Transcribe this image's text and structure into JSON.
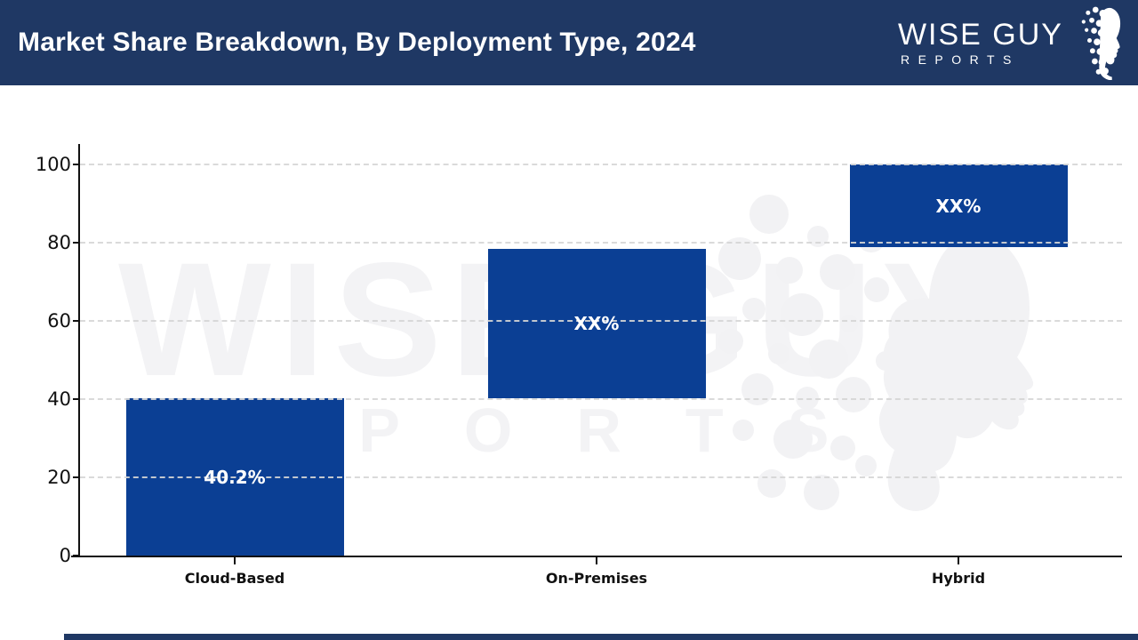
{
  "header": {
    "title": "Market Share Breakdown, By Deployment Type, 2024",
    "logo": {
      "line1": "WISE GUY",
      "line2": "REPORTS"
    }
  },
  "watermark": {
    "line1": "WISE GUY",
    "line2": "REPORTS"
  },
  "colors": {
    "header_bg": "#1f3864",
    "footer_bg": "#1f3864",
    "bar": "#0b3f94",
    "bar_label": "#ffffff",
    "gridline": "#d6d6d6",
    "axis": "#111111",
    "watermark": "#f3f3f5"
  },
  "chart_data": {
    "type": "bar",
    "subtype": "waterfall-floating-bars",
    "title": "Market Share Breakdown, By Deployment Type, 2024",
    "categories": [
      "Cloud-Based",
      "On-Premises",
      "Hybrid"
    ],
    "segments": [
      {
        "category": "Cloud-Based",
        "start": 0,
        "end": 40.2,
        "label": "40.2%"
      },
      {
        "category": "On-Premises",
        "start": 40.2,
        "end": 78.5,
        "label": "XX%"
      },
      {
        "category": "Hybrid",
        "start": 78.8,
        "end": 100,
        "label": "XX%"
      }
    ],
    "xlabel": "",
    "ylabel": "",
    "ylim": [
      0,
      105
    ],
    "yticks": [
      0,
      20,
      40,
      60,
      80,
      100
    ],
    "grid": "horizontal-dashed",
    "grid_above_bars": true,
    "legend": "none",
    "bar_color": "#0b3f94",
    "value_unit": "%"
  }
}
